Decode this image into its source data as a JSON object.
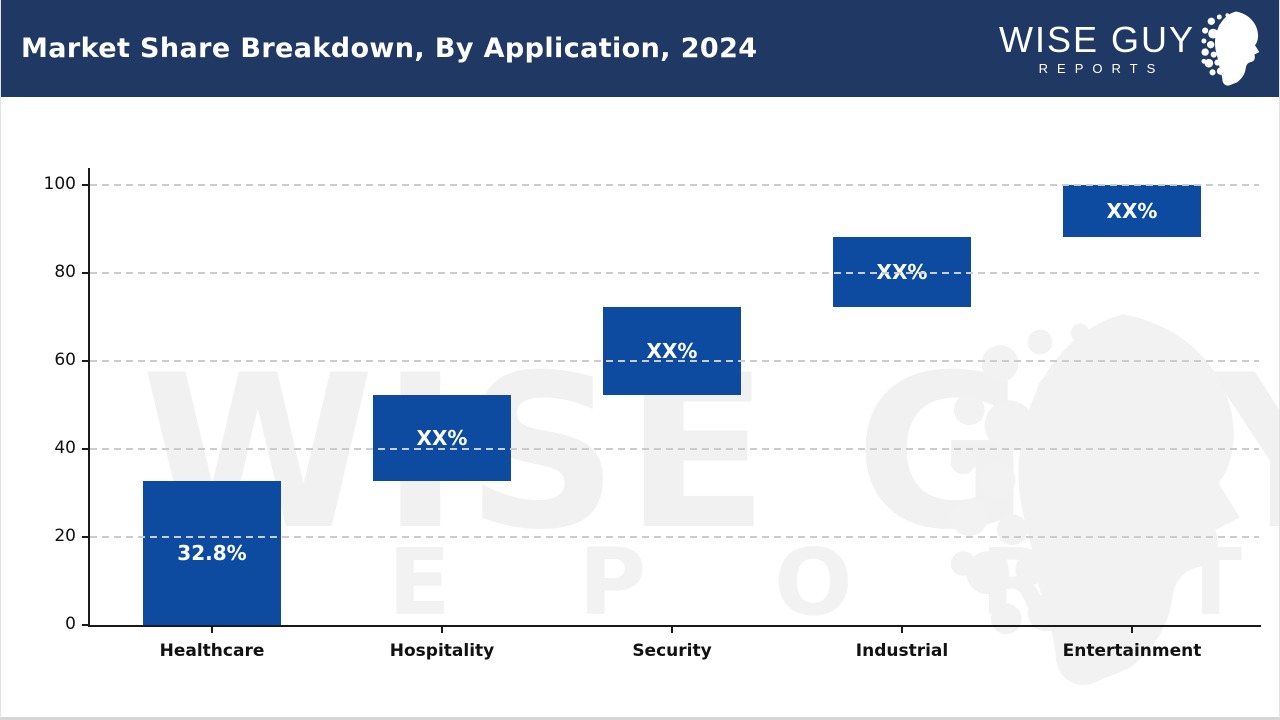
{
  "header": {
    "title": "Market Share Breakdown, By Application, 2024",
    "brand": {
      "line1": "WISE GUY",
      "line2": "R E P O R T S"
    }
  },
  "watermark": {
    "line1": "WISE GUY",
    "line2": "REPORTS"
  },
  "chart_data": {
    "type": "bar",
    "subtype": "waterfall",
    "title": "Market Share Breakdown, By Application, 2024",
    "xlabel": "",
    "ylabel": "",
    "categories": [
      "Healthcare",
      "Hospitality",
      "Security",
      "Industrial",
      "Entertainment"
    ],
    "segments": [
      {
        "category": "Healthcare",
        "start": 0,
        "end": 32.8,
        "label": "32.8%"
      },
      {
        "category": "Hospitality",
        "start": 32.8,
        "end": 52.3,
        "label": "XX%"
      },
      {
        "category": "Security",
        "start": 52.3,
        "end": 72.2,
        "label": "XX%"
      },
      {
        "category": "Industrial",
        "start": 72.2,
        "end": 88.2,
        "label": "XX%"
      },
      {
        "category": "Entertainment",
        "start": 88.2,
        "end": 100,
        "label": "XX%"
      }
    ],
    "yticks": [
      0,
      20,
      40,
      60,
      80,
      100
    ],
    "ylim": [
      0,
      103.5
    ],
    "grid": "horizontal-dashed",
    "legend": "none",
    "colors": {
      "bar": "#0c4b9f",
      "bar_label": "#ffffff",
      "header_bg": "#203864",
      "gridline": "#cccccc",
      "axis": "#1a1a1a",
      "watermark": "#f1f1f1"
    }
  }
}
